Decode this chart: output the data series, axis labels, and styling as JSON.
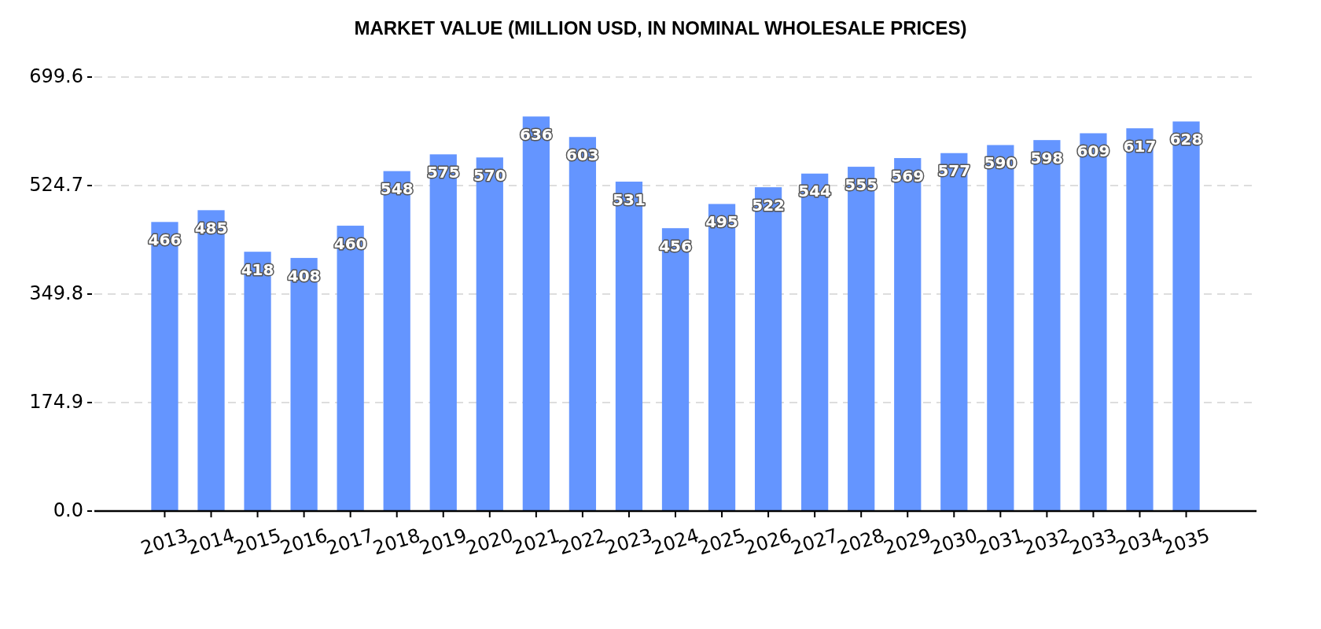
{
  "chart_data": {
    "type": "bar",
    "title": "MARKET VALUE (MILLION USD, IN NOMINAL WHOLESALE PRICES)",
    "categories": [
      "2013",
      "2014",
      "2015",
      "2016",
      "2017",
      "2018",
      "2019",
      "2020",
      "2021",
      "2022",
      "2023",
      "2024",
      "2025",
      "2026",
      "2027",
      "2028",
      "2029",
      "2030",
      "2031",
      "2032",
      "2033",
      "2034",
      "2035"
    ],
    "values": [
      466,
      485,
      418,
      408,
      460,
      548,
      575,
      570,
      636,
      603,
      531,
      456,
      495,
      522,
      544,
      555,
      569,
      577,
      590,
      598,
      609,
      617,
      628
    ],
    "color": "#6495ff",
    "ylim": [
      0,
      699.6
    ],
    "yticks": [
      {
        "value": 0,
        "label": "0.0"
      },
      174.9,
      349.8,
      524.7,
      699.6
    ],
    "grid": "y",
    "data_labels": true
  }
}
